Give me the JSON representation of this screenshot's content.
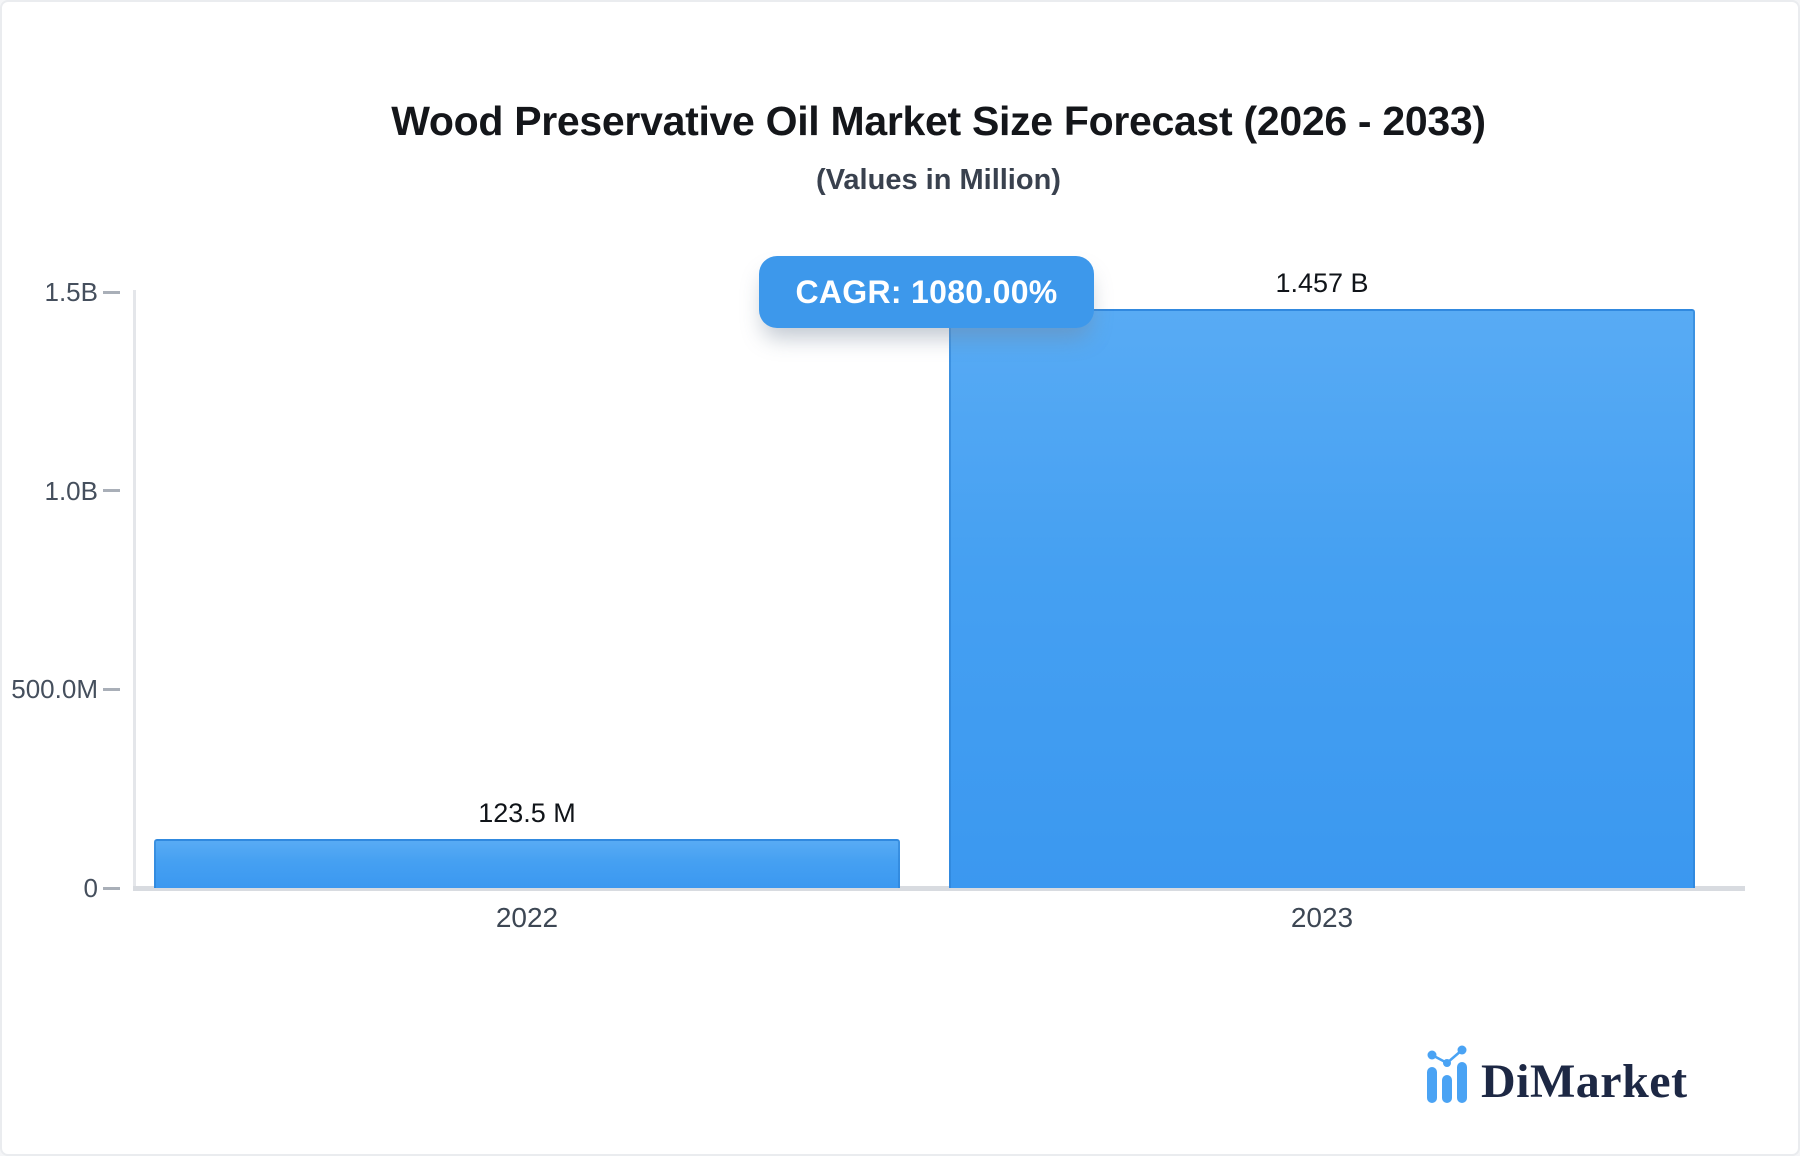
{
  "title": "Wood Preservative Oil Market Size Forecast (2026 - 2033)",
  "subtitle": "(Values in Million)",
  "cagr_label": "CAGR: 1080.00%",
  "brand": {
    "name": "DiMarket"
  },
  "colors": {
    "bar_top": "#58abf4",
    "bar_bottom": "#3b98f0",
    "bar_border": "#2e86dd",
    "badge_bg": "#3d98eb",
    "badge_text": "#ffffff",
    "title_text": "#14161a",
    "subtitle_text": "#39414e",
    "axis_text": "#454f5d",
    "value_text": "#101419",
    "axis_line": "#e4e6ea",
    "baseline": "#d8dbe0",
    "tick": "#a9afb8",
    "logo_text": "#1d2844",
    "logo_blue": "#4aa3f4"
  },
  "chart_data": {
    "type": "bar",
    "title": "Wood Preservative Oil Market Size Forecast (2026 - 2033)",
    "subtitle": "(Values in Million)",
    "annotation": "CAGR: 1080.00%",
    "categories": [
      "2022",
      "2023"
    ],
    "values": [
      123500000,
      1457000000
    ],
    "value_labels": [
      "123.5 M",
      "1.457 B"
    ],
    "ylim": [
      0,
      1500000000
    ],
    "yticks": [
      {
        "value": 0,
        "label": "0"
      },
      {
        "value": 500000000,
        "label": "500.0M"
      },
      {
        "value": 1000000000,
        "label": "1.0B"
      },
      {
        "value": 1500000000,
        "label": "1.5B"
      }
    ],
    "grid": false,
    "legend": false
  }
}
